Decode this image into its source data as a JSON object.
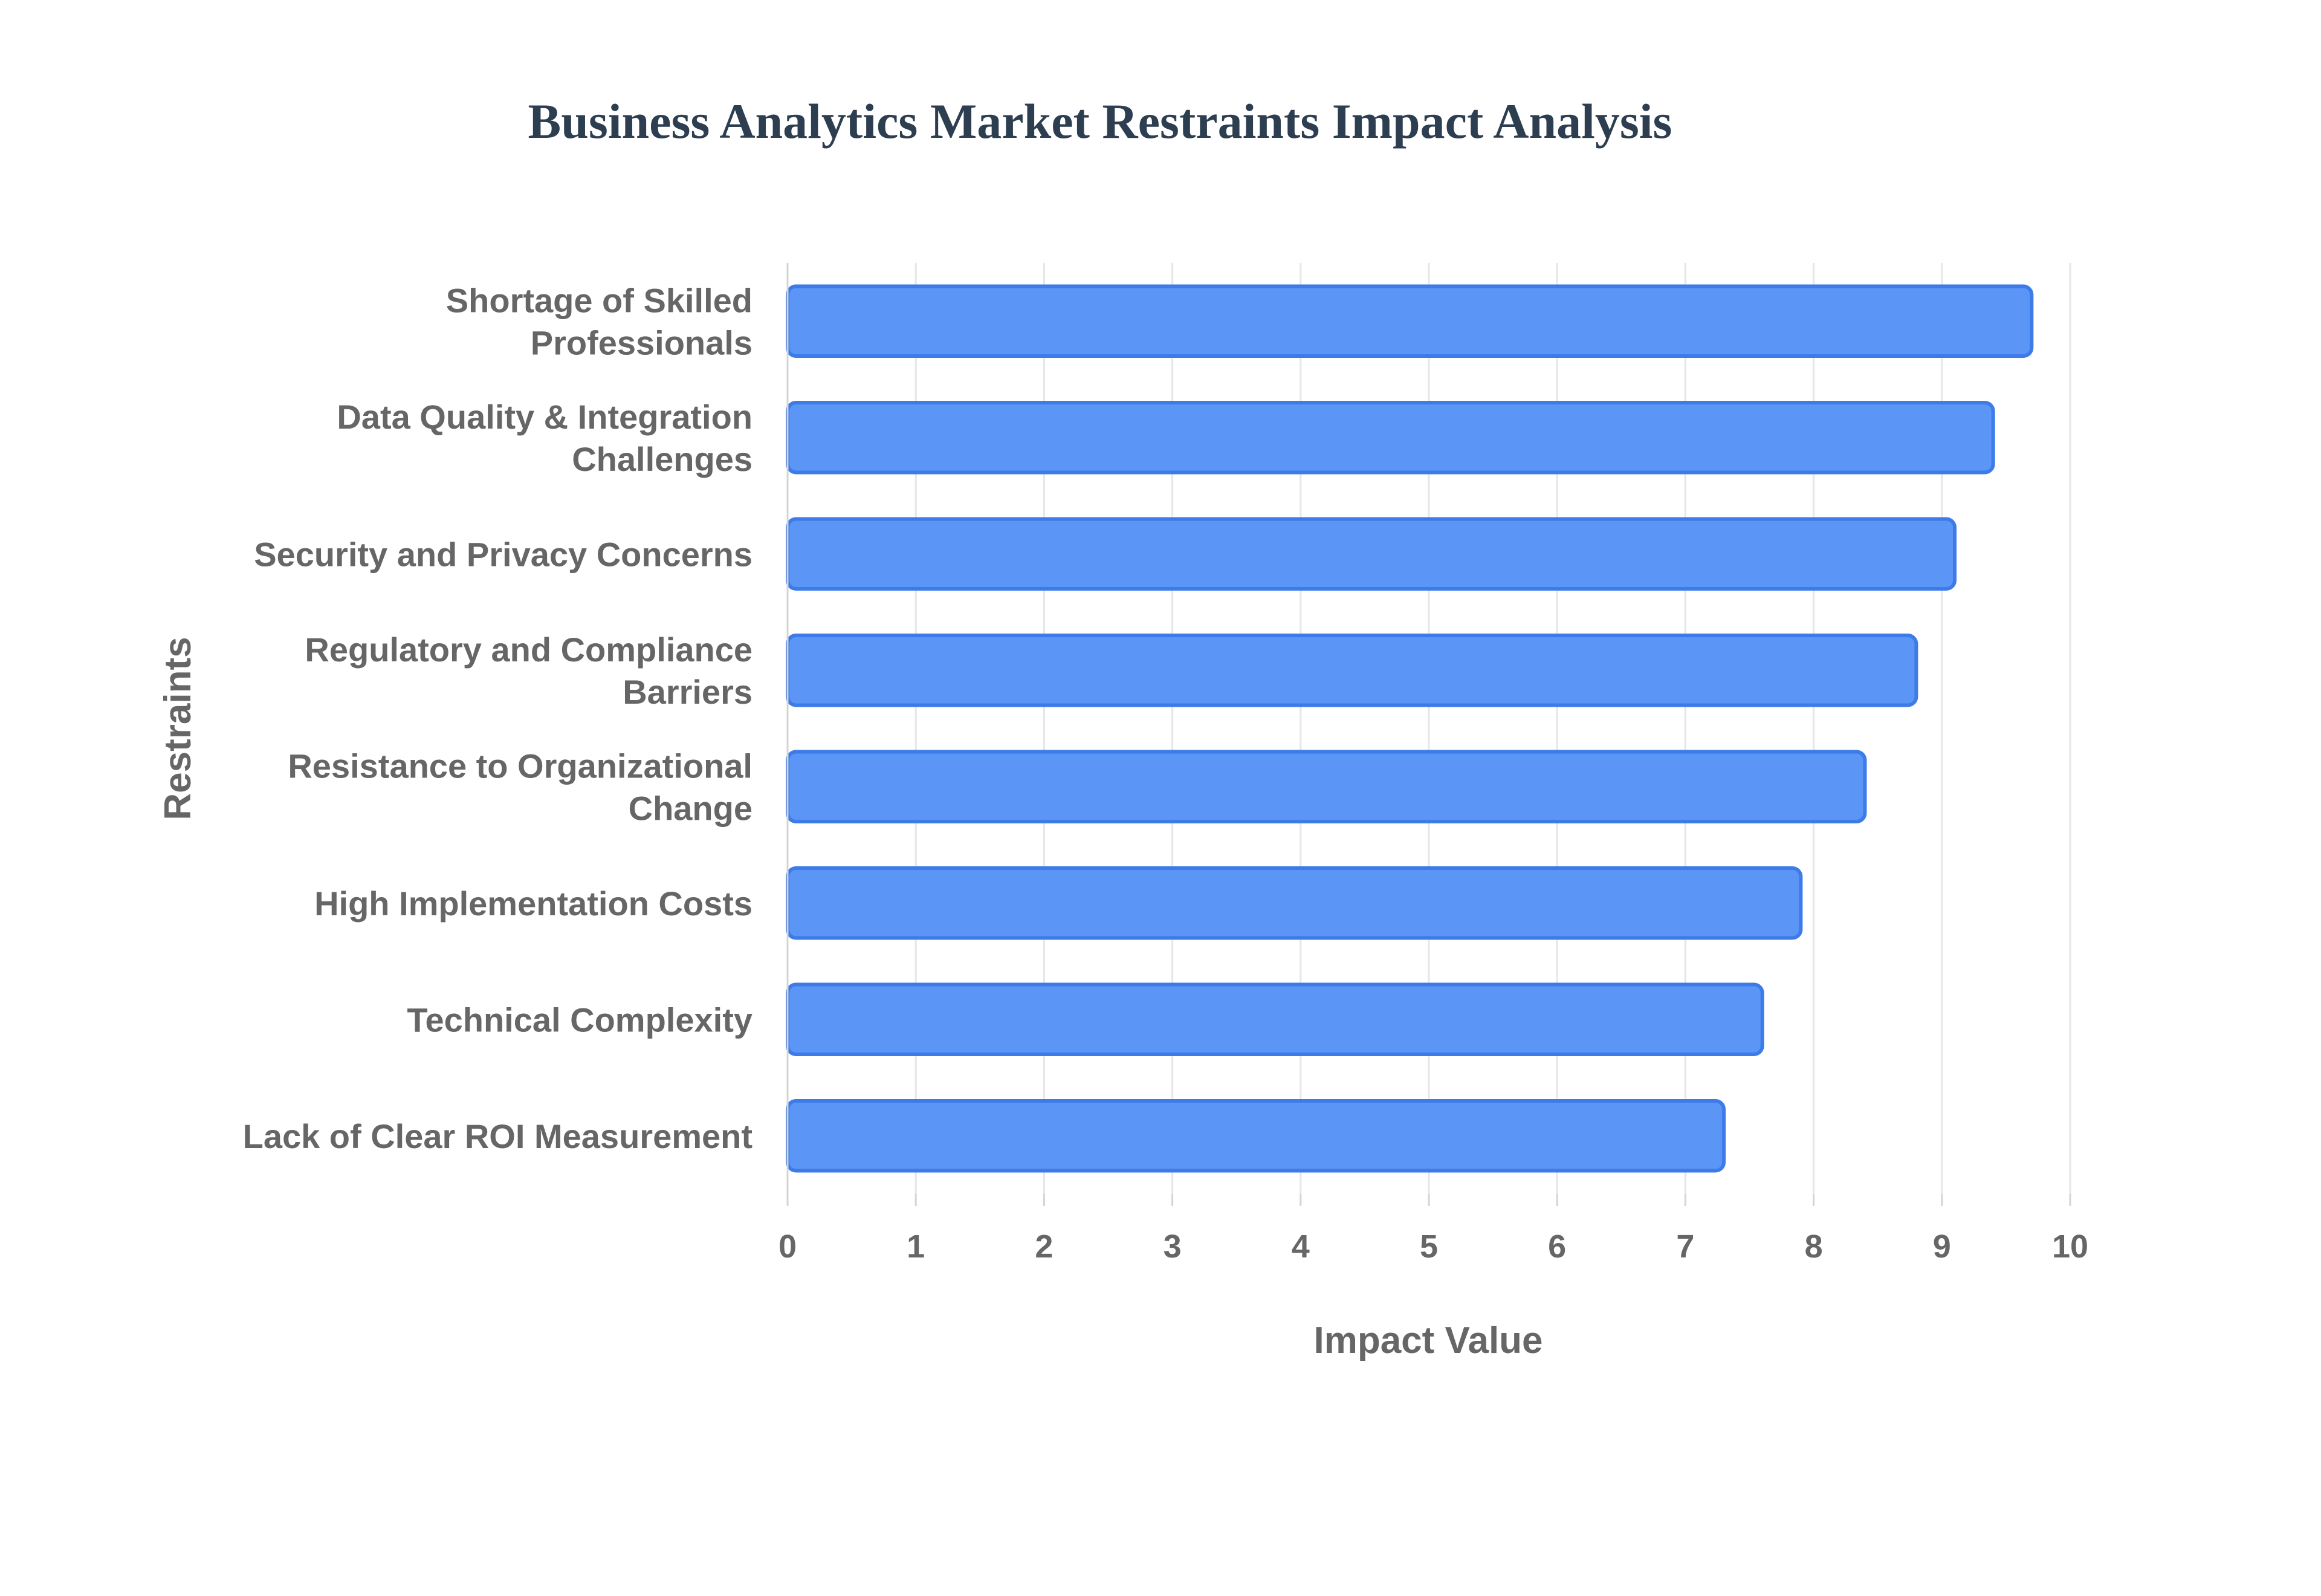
{
  "chart_data": {
    "type": "bar",
    "orientation": "horizontal",
    "title": "Business Analytics Market Restraints Impact Analysis",
    "xlabel": "Impact Value",
    "ylabel": "Restraints",
    "xlim": [
      0,
      10
    ],
    "xticks": [
      "0",
      "1",
      "2",
      "3",
      "4",
      "5",
      "6",
      "7",
      "8",
      "9",
      "10"
    ],
    "grid": true,
    "categories": [
      [
        "Shortage of Skilled",
        "Professionals"
      ],
      [
        "Data Quality & Integration",
        "Challenges"
      ],
      [
        "Security and Privacy Concerns"
      ],
      [
        "Regulatory and Compliance",
        "Barriers"
      ],
      [
        "Resistance to Organizational",
        "Change"
      ],
      [
        "High Implementation Costs"
      ],
      [
        "Technical Complexity"
      ],
      [
        "Lack of Clear ROI Measurement"
      ]
    ],
    "values": [
      9.7,
      9.4,
      9.1,
      8.8,
      8.4,
      7.9,
      7.6,
      7.3
    ],
    "bar_fill": "#5b95f5",
    "bar_stroke": "#3d7be8"
  }
}
